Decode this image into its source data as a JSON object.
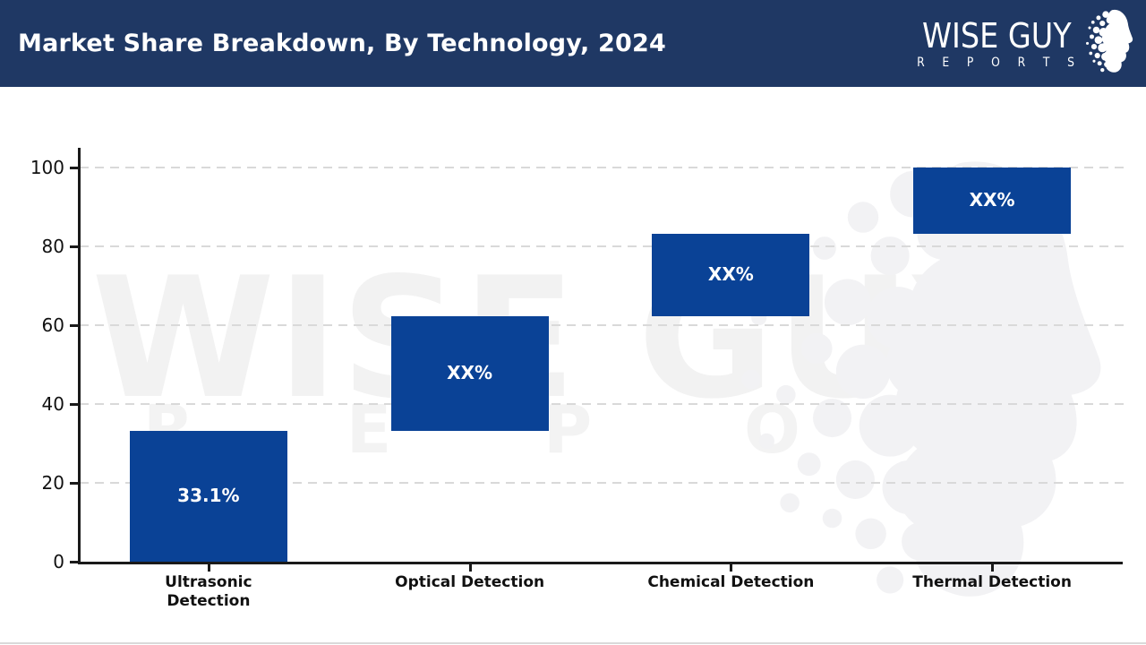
{
  "header": {
    "title": "Market Share Breakdown, By Technology, 2024",
    "bg_color": "#1f3864",
    "logo": {
      "wordmark": "WISE GUY",
      "sub": "R E P O R T S"
    }
  },
  "watermark": {
    "line1": "WISE GUY",
    "line2": "REPORTS"
  },
  "chart_data": {
    "type": "bar",
    "subtype": "waterfall",
    "title": "Market Share Breakdown, By Technology, 2024",
    "categories": [
      "Ultrasonic\nDetection",
      "Optical Detection",
      "Chemical Detection",
      "Thermal Detection"
    ],
    "segments": [
      {
        "category": "Ultrasonic Detection",
        "start": 0,
        "end": 33.1,
        "label": "33.1%"
      },
      {
        "category": "Optical Detection",
        "start": 33.1,
        "end": 62.3,
        "label": "XX%"
      },
      {
        "category": "Chemical Detection",
        "start": 62.3,
        "end": 83.2,
        "label": "XX%"
      },
      {
        "category": "Thermal Detection",
        "start": 83.2,
        "end": 100,
        "label": "XX%"
      }
    ],
    "y_ticks": [
      0,
      20,
      40,
      60,
      80,
      100
    ],
    "ylim": [
      0,
      105
    ],
    "xlabel": "",
    "ylabel": "",
    "bar_color": "#0a4296",
    "bar_label_color": "#ffffff",
    "grid": "dashed-horizontal",
    "legend": "none"
  }
}
